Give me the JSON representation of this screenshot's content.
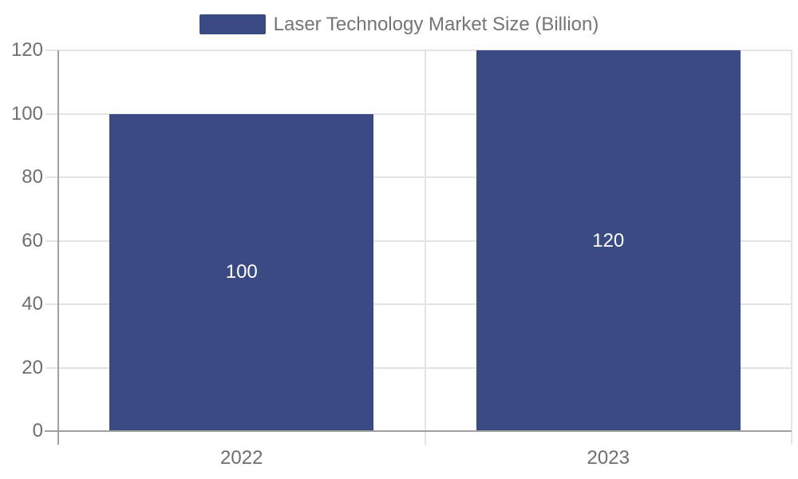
{
  "chart_data": {
    "type": "bar",
    "title": "",
    "legend": {
      "label": "Laser Technology Market Size (Billion)",
      "position": "top-center"
    },
    "categories": [
      "2022",
      "2023"
    ],
    "series": [
      {
        "name": "Laser Technology Market Size (Billion)",
        "values": [
          100,
          120
        ]
      }
    ],
    "value_labels": [
      "100",
      "120"
    ],
    "xlabel": "",
    "ylabel": "",
    "ylim": [
      0,
      120
    ],
    "yticks": [
      "0",
      "20",
      "40",
      "60",
      "80",
      "100",
      "120"
    ],
    "grid": true,
    "colors": {
      "bar": "#3A4A82",
      "grid_line": "#E4E4E4",
      "axis_line": "#A0A0A0",
      "tick_label": "#6E6E6E",
      "legend_text": "#757575",
      "value_label": "#FFFFFF",
      "background": "#FFFFFF"
    }
  }
}
